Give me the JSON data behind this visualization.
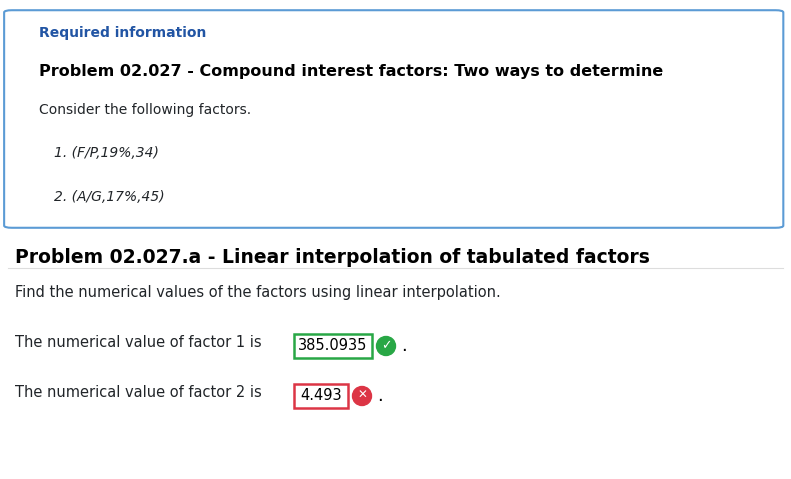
{
  "required_info_label": "Required information",
  "problem_title": "Problem 02.027 - Compound interest factors: Two ways to determine",
  "consider_text": "Consider the following factors.",
  "factor1": "1. (F/P,19%,34)",
  "factor2": "2. (A/G,17%,45)",
  "section_title": "Problem 02.027.a - Linear interpolation of tabulated factors",
  "find_text": "Find the numerical values of the factors using linear interpolation.",
  "factor1_label": "The numerical value of factor 1 is",
  "factor1_value": "385.0935",
  "factor2_label": "The numerical value of factor 2 is",
  "factor2_value": "4.493",
  "bg_color": "#ffffff",
  "box_border_color_correct": "#28a745",
  "box_border_color_wrong": "#dc3545",
  "required_info_color": "#2255a4",
  "body_text_color": "#212529",
  "top_box_border": "#5b9bd5",
  "top_box_bg": "#ffffff"
}
